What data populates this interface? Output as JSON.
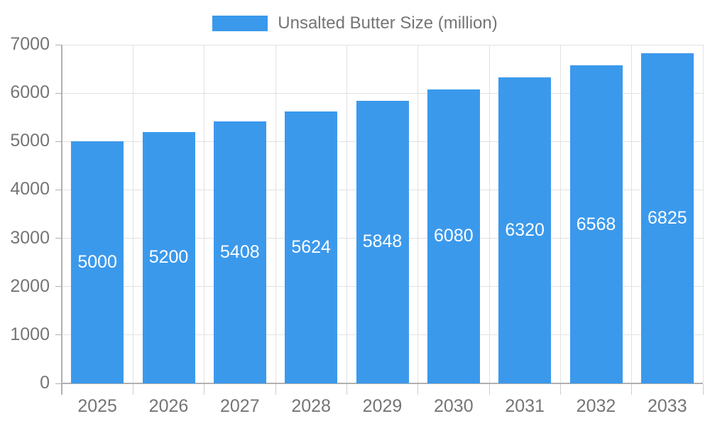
{
  "legend": {
    "label": "Unsalted Butter Size (million)"
  },
  "colors": {
    "bar": "#3b99ec",
    "bar_label": "#ffffff",
    "grid_line": "#e2e2e2",
    "axis_line": "#b0b0b0",
    "tick_text": "#757575",
    "background": "#ffffff"
  },
  "chart_data": {
    "type": "bar",
    "title": "",
    "xlabel": "",
    "ylabel": "",
    "categories": [
      "2025",
      "2026",
      "2027",
      "2028",
      "2029",
      "2030",
      "2031",
      "2032",
      "2033"
    ],
    "series": [
      {
        "name": "Unsalted Butter Size (million)",
        "values": [
          5000,
          5200,
          5408,
          5624,
          5848,
          6080,
          6320,
          6568,
          6825
        ]
      }
    ],
    "bar_labels": [
      "5000",
      "5200",
      "5408",
      "5624",
      "5848",
      "6080",
      "6320",
      "6568",
      "6825"
    ],
    "ylim": [
      0,
      7000
    ],
    "yticks": [
      0,
      1000,
      2000,
      3000,
      4000,
      5000,
      6000,
      7000
    ],
    "ytick_labels": [
      "0",
      "1000",
      "2000",
      "3000",
      "4000",
      "5000",
      "6000",
      "7000"
    ],
    "grid": true,
    "legend_position": "top-center",
    "bar_label_position": "center"
  }
}
